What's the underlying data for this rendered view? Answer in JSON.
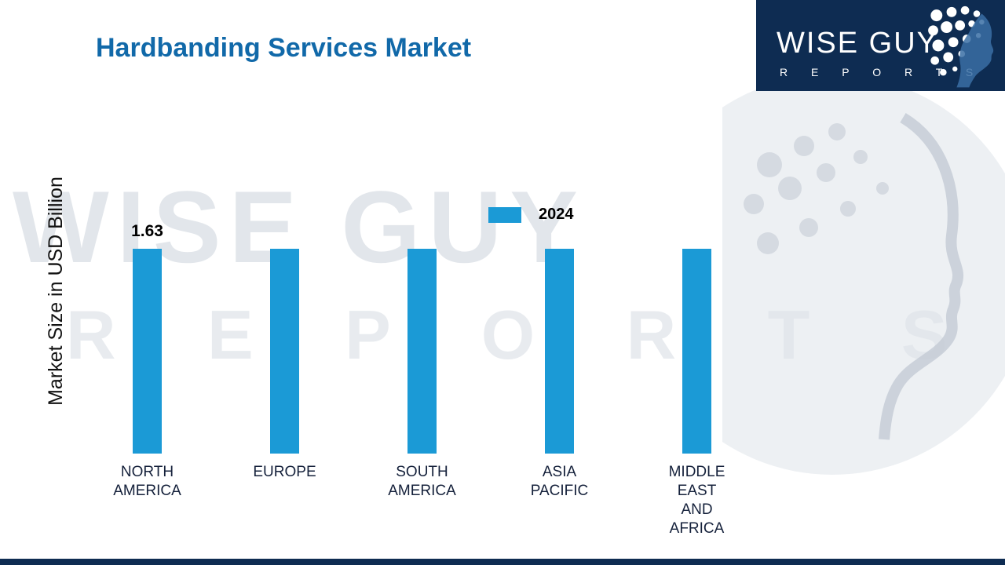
{
  "page": {
    "title": "Hardbanding Services Market"
  },
  "logo": {
    "line1": "WISE GUY",
    "line2": "R E P O R T S"
  },
  "watermark": {
    "line1": "WISE GUY",
    "line2": "R E P O R T S"
  },
  "chart_data": {
    "type": "bar",
    "title": "Hardbanding Services Market",
    "xlabel": "",
    "ylabel": "Market Size in USD Billion",
    "legend_position": "top-right",
    "grid": false,
    "categories": [
      "NORTH\nAMERICA",
      "EUROPE",
      "SOUTH\nAMERICA",
      "ASIA\nPACIFIC",
      "MIDDLE\nEAST\nAND\nAFRICA"
    ],
    "series": [
      {
        "name": "2024",
        "values": [
          1.63,
          1.63,
          1.63,
          1.63,
          1.63
        ]
      }
    ],
    "data_labels": [
      "1.63",
      "",
      "",
      "",
      ""
    ],
    "bar_color": "#1b9ad6"
  },
  "colors": {
    "title_blue": "#1169a9",
    "bar_blue": "#1b9ad6",
    "navy": "#0e2c52",
    "label_dark": "#15213b"
  }
}
